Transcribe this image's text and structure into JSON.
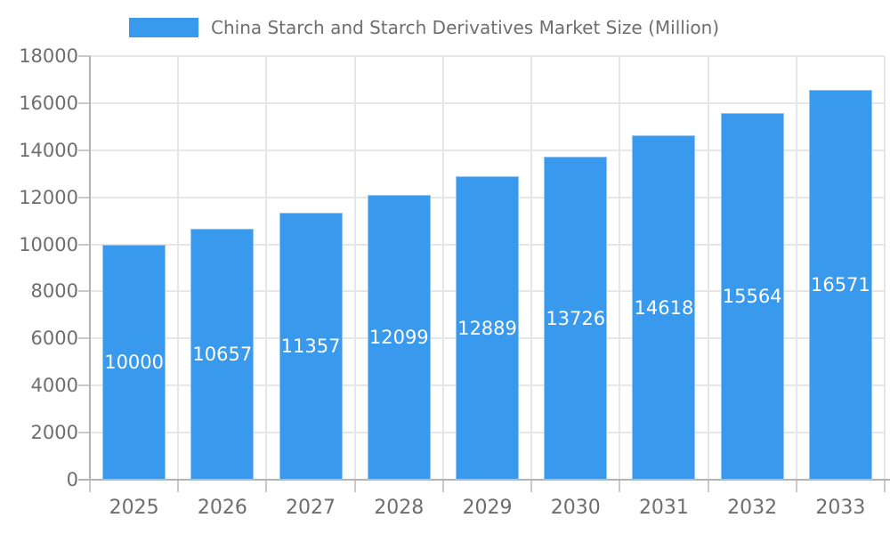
{
  "chart_data": {
    "type": "bar",
    "title": "China Starch and Starch Derivatives Market Size (Million)",
    "legend": [
      "China Starch and Starch Derivatives Market Size (Million)"
    ],
    "legend_position": "top",
    "categories": [
      "2025",
      "2026",
      "2027",
      "2028",
      "2029",
      "2030",
      "2031",
      "2032",
      "2033"
    ],
    "series": [
      {
        "name": "China Starch and Starch Derivatives Market Size (Million)",
        "values": [
          10000,
          10657,
          11357,
          12099,
          12889,
          13726,
          14618,
          15564,
          16571
        ]
      }
    ],
    "xlabel": "",
    "ylabel": "",
    "ylim": [
      0,
      18000
    ],
    "yticks": [
      0,
      2000,
      4000,
      6000,
      8000,
      10000,
      12000,
      14000,
      16000,
      18000
    ],
    "grid": true,
    "bar_color": "#3999ec",
    "bar_value_label_color": "#ffffff",
    "axis_text_color": "#6e6e6e",
    "grid_color": "#e6e6e6",
    "axis_line_color": "#b3b3b3"
  }
}
